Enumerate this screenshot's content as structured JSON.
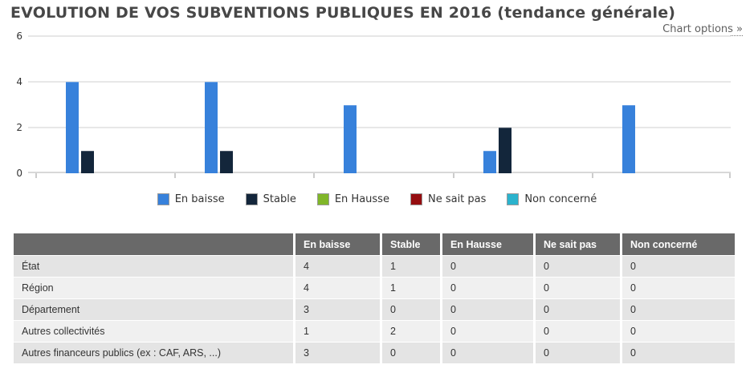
{
  "page": {
    "title": "EVOLUTION DE VOS SUBVENTIONS PUBLIQUES EN 2016 (tendance générale)",
    "chart_options_label": "Chart options »"
  },
  "chart_data": {
    "type": "bar",
    "title": "EVOLUTION DE VOS SUBVENTIONS PUBLIQUES EN 2016 (tendance générale)",
    "categories": [
      "État",
      "Région",
      "Département",
      "Autres collectivités",
      "Autres financeurs publics (ex : CAF, ARS, ...)"
    ],
    "series": [
      {
        "name": "En baisse",
        "color": "#3781DB",
        "values": [
          4,
          4,
          3,
          1,
          3
        ]
      },
      {
        "name": "Stable",
        "color": "#13263B",
        "values": [
          1,
          1,
          0,
          2,
          0
        ]
      },
      {
        "name": "En Hausse",
        "color": "#80B629",
        "values": [
          0,
          0,
          0,
          0,
          0
        ]
      },
      {
        "name": "Ne sait pas",
        "color": "#950D10",
        "values": [
          0,
          0,
          0,
          0,
          0
        ]
      },
      {
        "name": "Non concerné",
        "color": "#2BB3CD",
        "values": [
          0,
          0,
          0,
          0,
          0
        ]
      }
    ],
    "xlabel": "",
    "ylabel": "",
    "ylim": [
      0,
      6
    ],
    "yticks": [
      0,
      2,
      4,
      6
    ],
    "grid": true,
    "legend_position": "bottom",
    "x_tick_labels_shown": false
  },
  "table": {
    "columns": [
      "",
      "En baisse",
      "Stable",
      "En Hausse",
      "Ne sait pas",
      "Non concerné"
    ],
    "rows": [
      {
        "label": "État",
        "values": [
          4,
          1,
          0,
          0,
          0
        ]
      },
      {
        "label": "Région",
        "values": [
          4,
          1,
          0,
          0,
          0
        ]
      },
      {
        "label": "Département",
        "values": [
          3,
          0,
          0,
          0,
          0
        ]
      },
      {
        "label": "Autres collectivités",
        "values": [
          1,
          2,
          0,
          0,
          0
        ]
      },
      {
        "label": "Autres financeurs publics (ex : CAF, ARS, ...)",
        "values": [
          3,
          0,
          0,
          0,
          0
        ]
      }
    ]
  },
  "colors": {
    "title_text": "#474747",
    "table_header_bg": "#696969",
    "table_row_odd": "#e4e4e4",
    "table_row_even": "#f0f0f0",
    "gridline": "#e7e7e7",
    "axis": "#d8d8d8"
  }
}
